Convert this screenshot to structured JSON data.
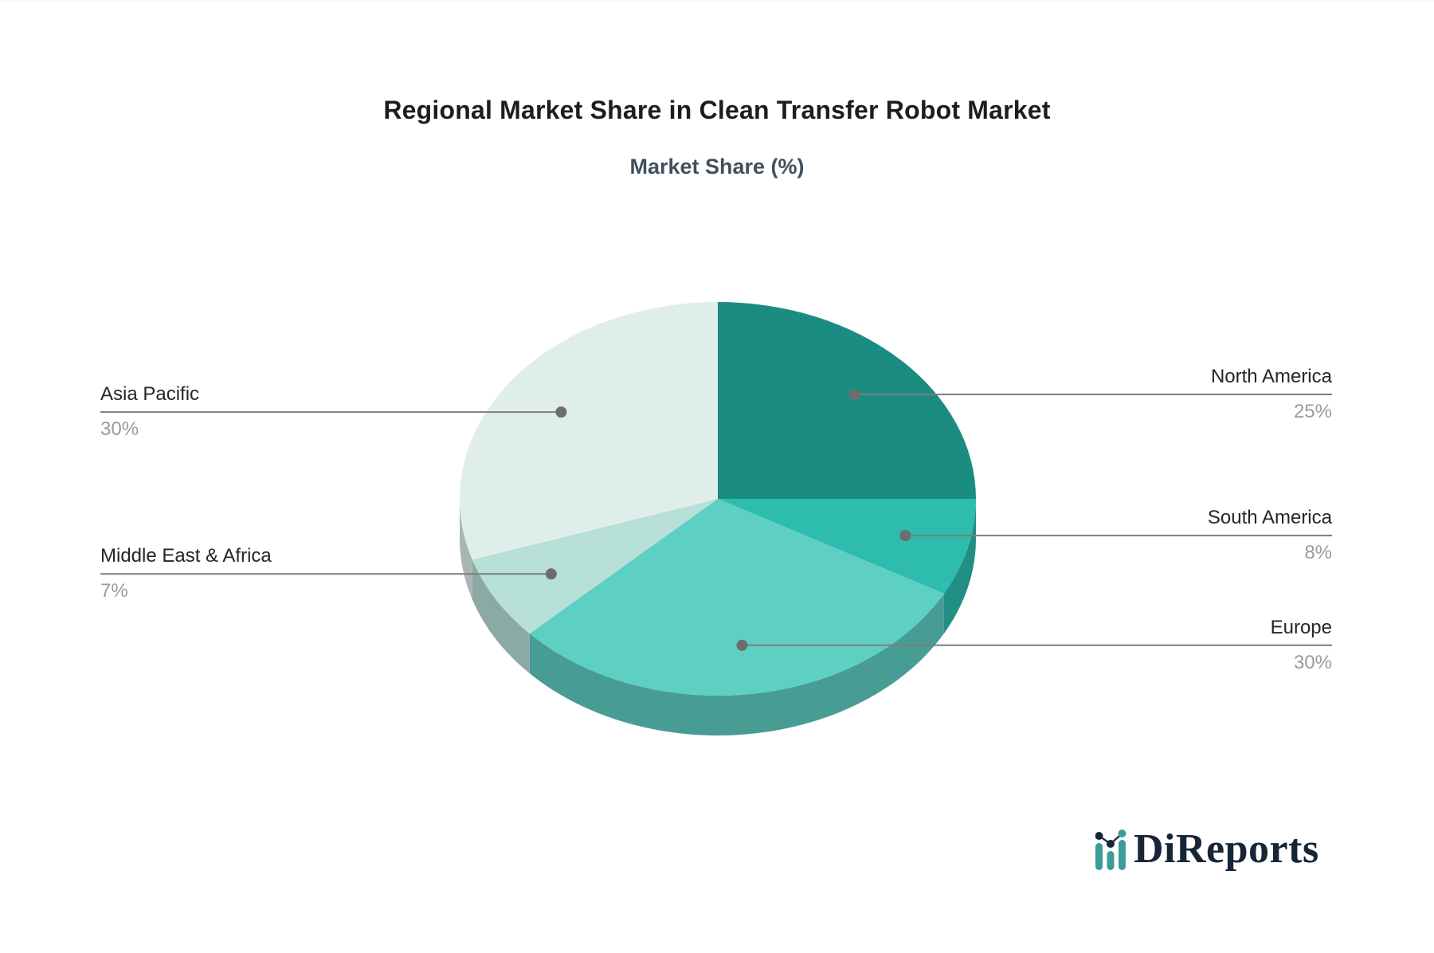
{
  "chart_data": {
    "type": "pie",
    "title": "Regional Market Share in Clean Transfer Robot Market",
    "subtitle": "Market Share (%)",
    "style": "3d",
    "start_angle_deg": 0,
    "direction": "clockwise",
    "legend_position": "callout-labels",
    "unit": "%",
    "slices": [
      {
        "label": "North America",
        "value": 25,
        "display": "25%",
        "color": "#1b8c82"
      },
      {
        "label": "South America",
        "value": 8,
        "display": "8%",
        "color": "#2dbcae"
      },
      {
        "label": "Europe",
        "value": 30,
        "display": "30%",
        "color": "#5ecfc3"
      },
      {
        "label": "Middle East & Africa",
        "value": 7,
        "display": "7%",
        "color": "#b7e0d9"
      },
      {
        "label": "Asia Pacific",
        "value": 30,
        "display": "30%",
        "color": "#e0eeea"
      }
    ],
    "callout_line_color": "#7d7d7d",
    "callout_dot_color": "#6d6d6d"
  },
  "branding": {
    "logo_text": "DiReports",
    "logo_icon": "bar-chart-logo-icon",
    "logo_text_color": "#172539",
    "logo_accent_color": "#3b9c98"
  }
}
